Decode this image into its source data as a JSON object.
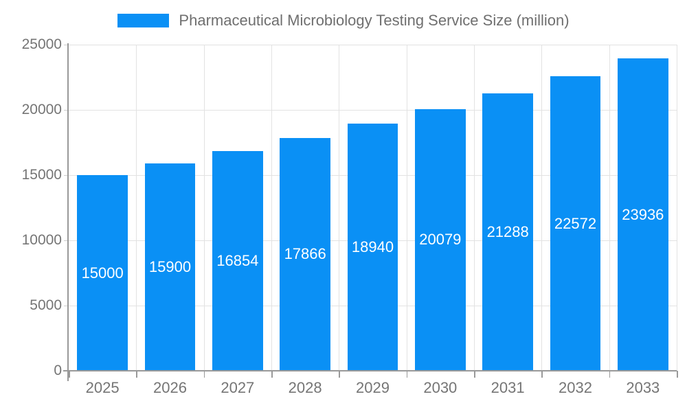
{
  "legend": {
    "label": "Pharmaceutical Microbiology Testing Service Size (million)"
  },
  "chart_data": {
    "type": "bar",
    "title": "Pharmaceutical Microbiology Testing Service Size (million)",
    "categories": [
      "2025",
      "2026",
      "2027",
      "2028",
      "2029",
      "2030",
      "2031",
      "2032",
      "2033"
    ],
    "values": [
      15000,
      15900,
      16854,
      17866,
      18940,
      20079,
      21288,
      22572,
      23936
    ],
    "xlabel": "",
    "ylabel": "",
    "ylim": [
      0,
      25000
    ],
    "yticks": [
      0,
      5000,
      10000,
      15000,
      20000,
      25000
    ],
    "grid": true,
    "legend_position": "top",
    "value_labels": "inside-center"
  },
  "colors": {
    "bar": "#0a90f5",
    "value_label": "#ffffff",
    "grid": "#e2e2e2",
    "axis_line": "#999999",
    "y_tick": "#cccccc",
    "x_tick": "#999999",
    "axis_label": "#757575",
    "legend_text": "#6f6f6f",
    "background": "#ffffff"
  }
}
